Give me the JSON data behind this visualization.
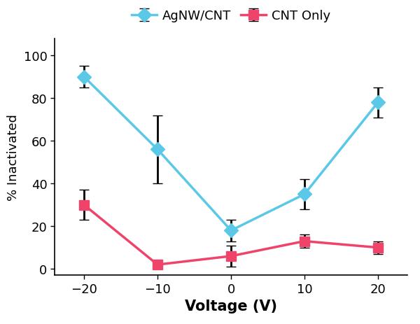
{
  "x": [
    -20,
    -10,
    0,
    10,
    20
  ],
  "agnw_cnt_y": [
    90,
    56,
    18,
    35,
    78
  ],
  "agnw_cnt_yerr": [
    5,
    16,
    5,
    7,
    7
  ],
  "cnt_only_y": [
    30,
    2,
    6,
    13,
    10
  ],
  "cnt_only_yerr": [
    7,
    1,
    5,
    3,
    3
  ],
  "agnw_color": "#5BC8E8",
  "cnt_color": "#F0436A",
  "xlabel": "Voltage (V)",
  "ylabel": "% Inactivated",
  "xlabel_fontsize": 15,
  "ylabel_fontsize": 13,
  "xticks": [
    -20,
    -10,
    0,
    10,
    20
  ],
  "yticks": [
    0,
    20,
    40,
    60,
    80,
    100
  ],
  "ylim": [
    -3,
    108
  ],
  "xlim": [
    -24,
    24
  ],
  "legend_agnw": "AgNW/CNT",
  "legend_cnt": "CNT Only",
  "legend_fontsize": 13,
  "tick_fontsize": 13,
  "linewidth": 2.5,
  "markersize": 10,
  "capsize": 5,
  "elinewidth": 2.0,
  "background_color": "#ffffff"
}
